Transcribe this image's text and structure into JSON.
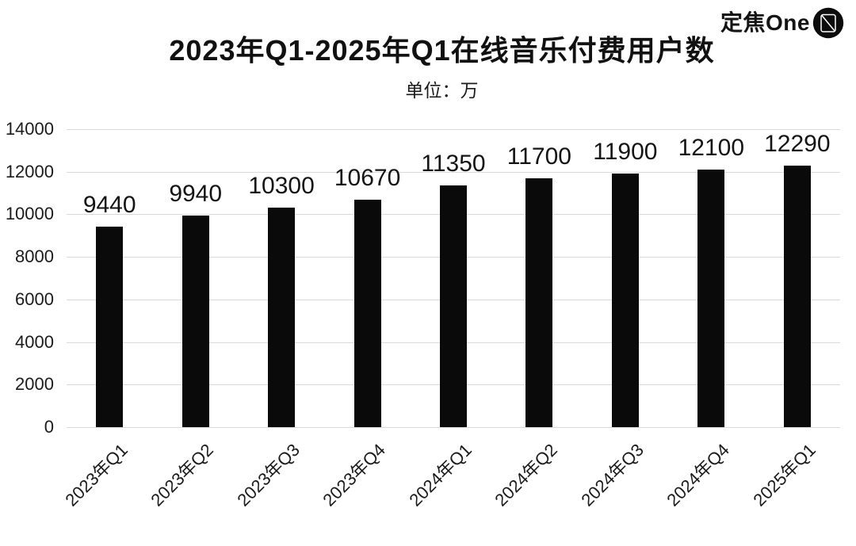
{
  "brand": {
    "name": "定焦One",
    "logo_icon": "focus-frame-icon"
  },
  "chart_data": {
    "type": "bar",
    "title": "2023年Q1-2025年Q1在线音乐付费用户数",
    "subtitle": "单位：万",
    "unit": "万",
    "categories": [
      "2023年Q1",
      "2023年Q2",
      "2023年Q3",
      "2023年Q4",
      "2024年Q1",
      "2024年Q2",
      "2024年Q3",
      "2024年Q4",
      "2025年Q1"
    ],
    "values": [
      9440,
      9940,
      10300,
      10670,
      11350,
      11700,
      11900,
      12100,
      12290
    ],
    "ylim": [
      0,
      14000
    ],
    "yticks": [
      0,
      2000,
      4000,
      6000,
      8000,
      10000,
      12000,
      14000
    ],
    "grid": true,
    "legend": "none",
    "xlabel": "",
    "ylabel": "",
    "bar_color": "#0a0a0a",
    "gridline_color": "#dadada",
    "text_color": "#1b1b1b"
  }
}
